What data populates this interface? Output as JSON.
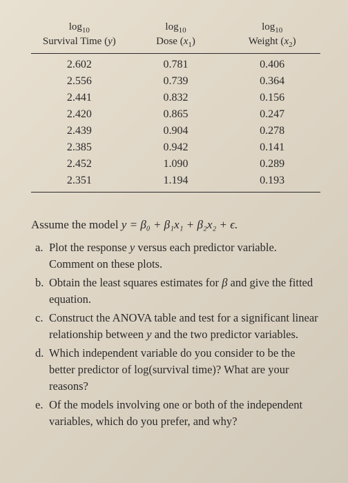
{
  "table": {
    "headers": [
      {
        "top": "log₁₀",
        "bottom_pre": "Survival Time (",
        "var": "y",
        "bottom_post": ")"
      },
      {
        "top": "log₁₀",
        "bottom_pre": "Dose (",
        "var": "x",
        "sub": "1",
        "bottom_post": ")"
      },
      {
        "top": "log₁₀",
        "bottom_pre": "Weight (",
        "var": "x",
        "sub": "2",
        "bottom_post": ")"
      }
    ],
    "rows": [
      [
        "2.602",
        "0.781",
        "0.406"
      ],
      [
        "2.556",
        "0.739",
        "0.364"
      ],
      [
        "2.441",
        "0.832",
        "0.156"
      ],
      [
        "2.420",
        "0.865",
        "0.247"
      ],
      [
        "2.439",
        "0.904",
        "0.278"
      ],
      [
        "2.385",
        "0.942",
        "0.141"
      ],
      [
        "2.452",
        "1.090",
        "0.289"
      ],
      [
        "2.351",
        "1.194",
        "0.193"
      ]
    ]
  },
  "model": {
    "prefix": "Assume the model ",
    "equation": "y = β₀ + β₁x₁ + β₂x₂ + ϵ."
  },
  "questions": [
    {
      "letter": "a.",
      "text": "Plot the response y versus each predictor variable. Comment on these plots."
    },
    {
      "letter": "b.",
      "text": "Obtain the least squares estimates for β and give the fitted equation."
    },
    {
      "letter": "c.",
      "text": "Construct the ANOVA table and test for a significant linear relationship between y and the two predictor variables."
    },
    {
      "letter": "d.",
      "text": "Which independent variable do you consider to be the better predictor of log(survival time)? What are your reasons?"
    },
    {
      "letter": "e.",
      "text": "Of the models involving one or both of the independent variables, which do you prefer, and why?"
    }
  ]
}
